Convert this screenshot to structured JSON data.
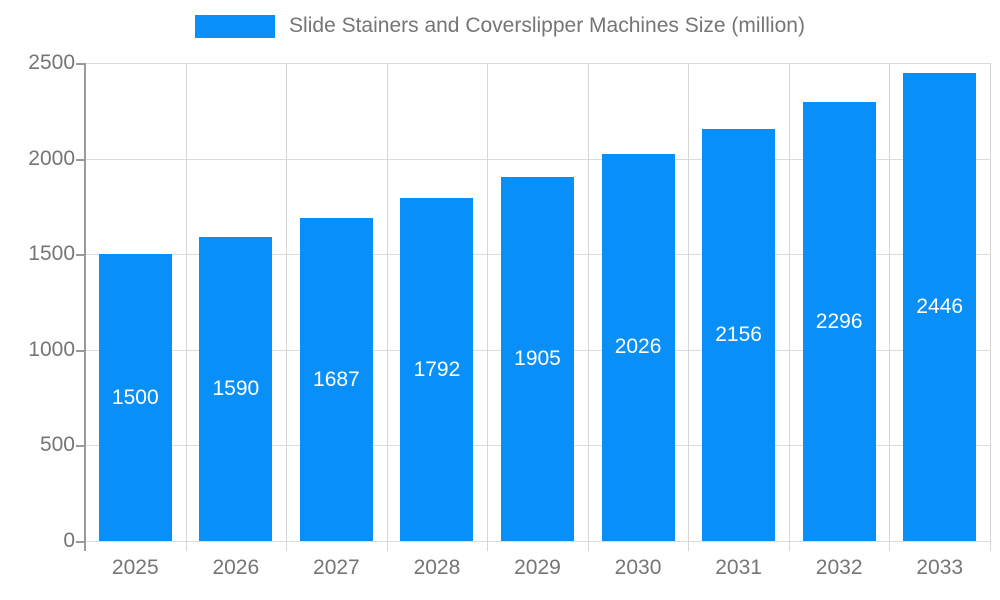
{
  "legend": {
    "label": "Slide Stainers and Coverslipper Machines Size (million)"
  },
  "colors": {
    "bar": "#0990f8",
    "grid": "#dcdcdc",
    "axis": "#9a9a9a",
    "tick_text": "#757575",
    "bar_label_text": "#ffffff",
    "background": "#ffffff"
  },
  "chart_data": {
    "type": "bar",
    "title": "Slide Stainers and Coverslipper Machines Size (million)",
    "series_name": "Slide Stainers and Coverslipper Machines Size (million)",
    "categories": [
      "2025",
      "2026",
      "2027",
      "2028",
      "2029",
      "2030",
      "2031",
      "2032",
      "2033"
    ],
    "values": [
      1500,
      1590,
      1687,
      1792,
      1905,
      2026,
      2156,
      2296,
      2446
    ],
    "xlabel": "",
    "ylabel": "",
    "ylim": [
      0,
      2500
    ],
    "yticks": [
      0,
      500,
      1000,
      1500,
      2000,
      2500
    ],
    "grid": true,
    "legend_position": "top-center",
    "value_labels": "inside-center",
    "bar_color": "#0990f8"
  }
}
